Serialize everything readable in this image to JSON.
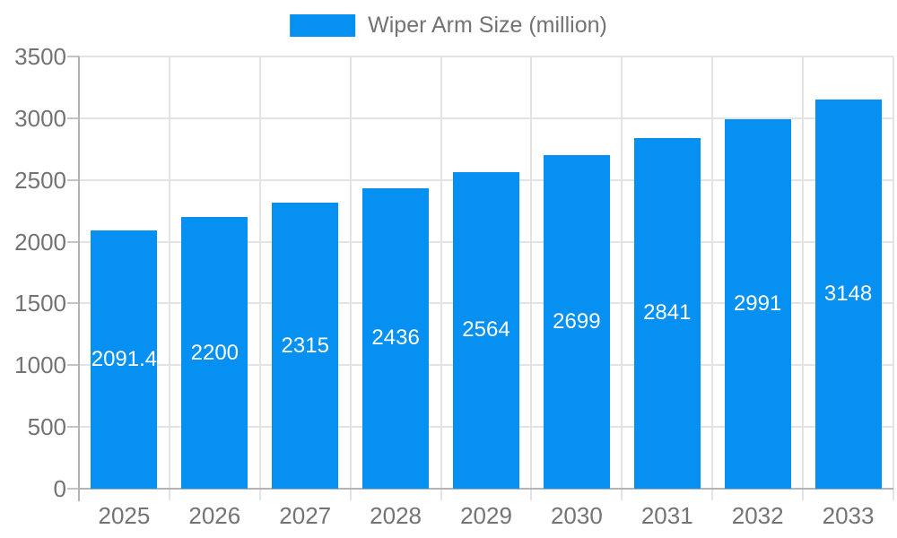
{
  "chart_data": {
    "type": "bar",
    "title": "",
    "legend": "Wiper Arm Size (million)",
    "legend_position": "top-center",
    "categories": [
      "2025",
      "2026",
      "2027",
      "2028",
      "2029",
      "2030",
      "2031",
      "2032",
      "2033"
    ],
    "values": [
      2091.4,
      2200,
      2315,
      2436,
      2564,
      2699,
      2841,
      2991,
      3148
    ],
    "value_labels": [
      "2091.4",
      "2200",
      "2315",
      "2436",
      "2564",
      "2699",
      "2841",
      "2991",
      "3148"
    ],
    "xlabel": "",
    "ylabel": "",
    "ylim": [
      0,
      3500
    ],
    "yticks": [
      0,
      500,
      1000,
      1500,
      2000,
      2500,
      3000,
      3500
    ],
    "grid": true,
    "colors": {
      "bar": "#0590f2",
      "grid": "#e3e3e3",
      "axis": "#b3b3b3",
      "tick": "#c4c4c4",
      "axis_text": "#737373",
      "legend_text": "#737373",
      "value_label": "#ffffff",
      "background": "#ffffff"
    }
  }
}
